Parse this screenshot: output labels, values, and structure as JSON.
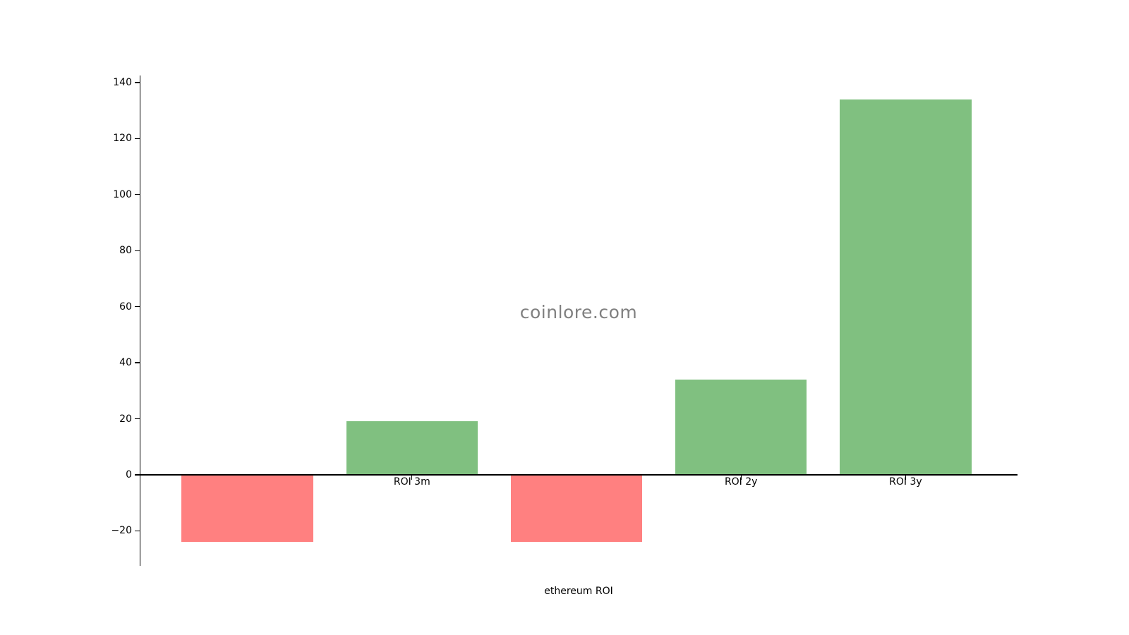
{
  "watermark": {
    "text": "coinlore.com",
    "color": "#808080"
  },
  "chart_data": {
    "type": "bar",
    "xlabel": "ethereum ROI",
    "ylabel": "",
    "categories": [
      "",
      "ROI 3m",
      "",
      "ROI 2y",
      "ROI 3y"
    ],
    "values": [
      -24,
      19,
      -24,
      34,
      134
    ],
    "positive_color": "#80c080",
    "negative_color": "#ff8080",
    "bar_colors": [
      "#ff8080",
      "#80c080",
      "#ff8080",
      "#80c080",
      "#80c080"
    ],
    "y_ticks": [
      140,
      120,
      100,
      80,
      60,
      40,
      20,
      0,
      -20
    ],
    "ylim": [
      -32.5,
      142.5
    ],
    "xlim": [
      -0.65,
      4.68
    ],
    "bar_width": 0.8,
    "grid": false,
    "legend": null,
    "axis_color": "#000000",
    "x_axis_position": "zero"
  }
}
